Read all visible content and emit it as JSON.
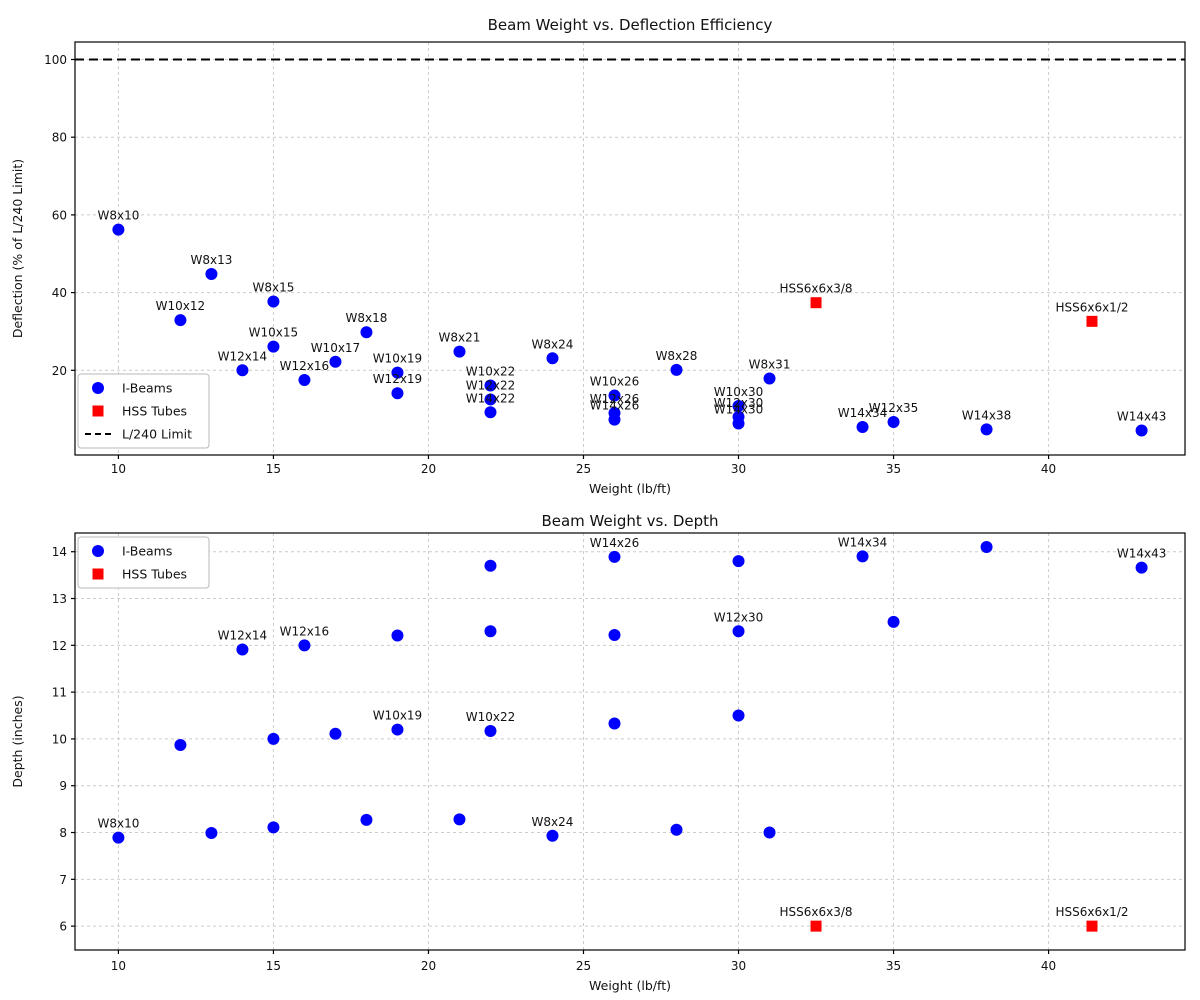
{
  "figure": {
    "background": "#ffffff",
    "top_title": "Beam Weight vs. Deflection Efficiency",
    "bottom_title": "Beam Weight vs. Depth"
  },
  "colors": {
    "ibeam": "#0000ff",
    "hss": "#ff0000",
    "limit_line": "#000000",
    "grid": "#cccccc"
  },
  "chart_data": [
    {
      "type": "scatter",
      "title": "Beam Weight vs. Deflection Efficiency",
      "xlabel": "Weight (lb/ft)",
      "ylabel": "Deflection (% of L/240 Limit)",
      "xlim": [
        8.6,
        44.4
      ],
      "ylim": [
        -1.8,
        104.5
      ],
      "x_ticks": [
        10,
        15,
        20,
        25,
        30,
        35,
        40
      ],
      "y_ticks": [
        20,
        40,
        60,
        80,
        100
      ],
      "grid": true,
      "ref_line": {
        "y": 100,
        "color": "#000000",
        "style": "dashed",
        "label": "L/240 Limit"
      },
      "legend": {
        "position": "lower-left",
        "entries": [
          {
            "label": "I-Beams",
            "marker": "circle",
            "color": "#0000ff"
          },
          {
            "label": "HSS Tubes",
            "marker": "square",
            "color": "#ff0000"
          },
          {
            "label": "L/240 Limit",
            "marker": "dash",
            "color": "#000000"
          }
        ]
      },
      "series": [
        {
          "name": "I-Beams",
          "marker": "circle",
          "color": "#0000ff",
          "points": [
            {
              "label": "W8x10",
              "x": 10,
              "y": 56.2,
              "labeled": true
            },
            {
              "label": "W10x12",
              "x": 12,
              "y": 32.9,
              "labeled": true
            },
            {
              "label": "W8x13",
              "x": 13,
              "y": 44.8,
              "labeled": true
            },
            {
              "label": "W12x14",
              "x": 14,
              "y": 20.0,
              "labeled": true
            },
            {
              "label": "W8x15",
              "x": 15,
              "y": 37.7,
              "labeled": true
            },
            {
              "label": "W10x15",
              "x": 15,
              "y": 26.1,
              "labeled": true
            },
            {
              "label": "W12x16",
              "x": 16,
              "y": 17.5,
              "labeled": true
            },
            {
              "label": "W10x17",
              "x": 17,
              "y": 22.2,
              "labeled": true
            },
            {
              "label": "W8x18",
              "x": 18,
              "y": 29.8,
              "labeled": true
            },
            {
              "label": "W10x19",
              "x": 19,
              "y": 19.4,
              "labeled": true
            },
            {
              "label": "W12x19",
              "x": 19,
              "y": 14.1,
              "labeled": true
            },
            {
              "label": "W8x21",
              "x": 21,
              "y": 24.8,
              "labeled": true
            },
            {
              "label": "W10x22",
              "x": 22,
              "y": 16.1,
              "labeled": true
            },
            {
              "label": "W12x22",
              "x": 22,
              "y": 12.5,
              "labeled": true
            },
            {
              "label": "W14x22",
              "x": 22,
              "y": 9.2,
              "labeled": true
            },
            {
              "label": "W8x24",
              "x": 24,
              "y": 23.1,
              "labeled": true
            },
            {
              "label": "W10x26",
              "x": 26,
              "y": 13.5,
              "labeled": true
            },
            {
              "label": "W12x26",
              "x": 26,
              "y": 9.0,
              "labeled": true
            },
            {
              "label": "W14x26",
              "x": 26,
              "y": 7.3,
              "labeled": true
            },
            {
              "label": "W8x28",
              "x": 28,
              "y": 20.1,
              "labeled": true
            },
            {
              "label": "W10x30",
              "x": 30,
              "y": 10.8,
              "labeled": true
            },
            {
              "label": "W12x30",
              "x": 30,
              "y": 8.0,
              "labeled": true
            },
            {
              "label": "W14x30",
              "x": 30,
              "y": 6.3,
              "labeled": true
            },
            {
              "label": "W8x31",
              "x": 31,
              "y": 17.9,
              "labeled": true
            },
            {
              "label": "W14x34",
              "x": 34,
              "y": 5.4,
              "labeled": true
            },
            {
              "label": "W12x35",
              "x": 35,
              "y": 6.7,
              "labeled": true
            },
            {
              "label": "W14x38",
              "x": 38,
              "y": 4.8,
              "labeled": true
            },
            {
              "label": "W14x43",
              "x": 43,
              "y": 4.5,
              "labeled": true
            }
          ]
        },
        {
          "name": "HSS Tubes",
          "marker": "square",
          "color": "#ff0000",
          "points": [
            {
              "label": "HSS6x6x3/8",
              "x": 32.5,
              "y": 37.4,
              "labeled": true
            },
            {
              "label": "HSS6x6x1/2",
              "x": 41.4,
              "y": 32.6,
              "labeled": true
            }
          ]
        }
      ]
    },
    {
      "type": "scatter",
      "title": "Beam Weight vs. Depth",
      "xlabel": "Weight (lb/ft)",
      "ylabel": "Depth (inches)",
      "xlim": [
        8.6,
        44.4
      ],
      "ylim": [
        5.49,
        14.4
      ],
      "x_ticks": [
        10,
        15,
        20,
        25,
        30,
        35,
        40
      ],
      "y_ticks": [
        6,
        7,
        8,
        9,
        10,
        11,
        12,
        13,
        14
      ],
      "grid": true,
      "legend": {
        "position": "upper-left",
        "entries": [
          {
            "label": "I-Beams",
            "marker": "circle",
            "color": "#0000ff"
          },
          {
            "label": "HSS Tubes",
            "marker": "square",
            "color": "#ff0000"
          }
        ]
      },
      "series": [
        {
          "name": "I-Beams",
          "marker": "circle",
          "color": "#0000ff",
          "points": [
            {
              "label": "W8x10",
              "x": 10,
              "y": 7.89,
              "labeled": true
            },
            {
              "label": "W10x12",
              "x": 12,
              "y": 9.87,
              "labeled": false
            },
            {
              "label": "W8x13",
              "x": 13,
              "y": 7.99,
              "labeled": false
            },
            {
              "label": "W12x14",
              "x": 14,
              "y": 11.91,
              "labeled": true
            },
            {
              "label": "W8x15",
              "x": 15,
              "y": 8.11,
              "labeled": false
            },
            {
              "label": "W10x15",
              "x": 15,
              "y": 10.0,
              "labeled": false
            },
            {
              "label": "W12x16",
              "x": 16,
              "y": 12.0,
              "labeled": true
            },
            {
              "label": "W10x17",
              "x": 17,
              "y": 10.11,
              "labeled": false
            },
            {
              "label": "W8x18",
              "x": 18,
              "y": 8.27,
              "labeled": false
            },
            {
              "label": "W10x19",
              "x": 19,
              "y": 10.2,
              "labeled": true
            },
            {
              "label": "W12x19",
              "x": 19,
              "y": 12.21,
              "labeled": false
            },
            {
              "label": "W8x21",
              "x": 21,
              "y": 8.28,
              "labeled": false
            },
            {
              "label": "W10x22",
              "x": 22,
              "y": 10.17,
              "labeled": true
            },
            {
              "label": "W12x22",
              "x": 22,
              "y": 12.3,
              "labeled": false
            },
            {
              "label": "W14x22",
              "x": 22,
              "y": 13.7,
              "labeled": false
            },
            {
              "label": "W8x24",
              "x": 24,
              "y": 7.93,
              "labeled": true
            },
            {
              "label": "W10x26",
              "x": 26,
              "y": 10.33,
              "labeled": false
            },
            {
              "label": "W12x26",
              "x": 26,
              "y": 12.22,
              "labeled": false
            },
            {
              "label": "W14x26",
              "x": 26,
              "y": 13.89,
              "labeled": true
            },
            {
              "label": "W8x28",
              "x": 28,
              "y": 8.06,
              "labeled": false
            },
            {
              "label": "W10x30",
              "x": 30,
              "y": 10.5,
              "labeled": false
            },
            {
              "label": "W12x30",
              "x": 30,
              "y": 12.3,
              "labeled": true
            },
            {
              "label": "W14x30",
              "x": 30,
              "y": 13.8,
              "labeled": false
            },
            {
              "label": "W8x31",
              "x": 31,
              "y": 8.0,
              "labeled": false
            },
            {
              "label": "W14x34",
              "x": 34,
              "y": 13.9,
              "labeled": true
            },
            {
              "label": "W12x35",
              "x": 35,
              "y": 12.5,
              "labeled": false
            },
            {
              "label": "W14x38",
              "x": 38,
              "y": 14.1,
              "labeled": false
            },
            {
              "label": "W14x43",
              "x": 43,
              "y": 13.66,
              "labeled": true
            }
          ]
        },
        {
          "name": "HSS Tubes",
          "marker": "square",
          "color": "#ff0000",
          "points": [
            {
              "label": "HSS6x6x3/8",
              "x": 32.5,
              "y": 6.0,
              "labeled": true
            },
            {
              "label": "HSS6x6x1/2",
              "x": 41.4,
              "y": 6.0,
              "labeled": true
            }
          ]
        }
      ]
    }
  ]
}
